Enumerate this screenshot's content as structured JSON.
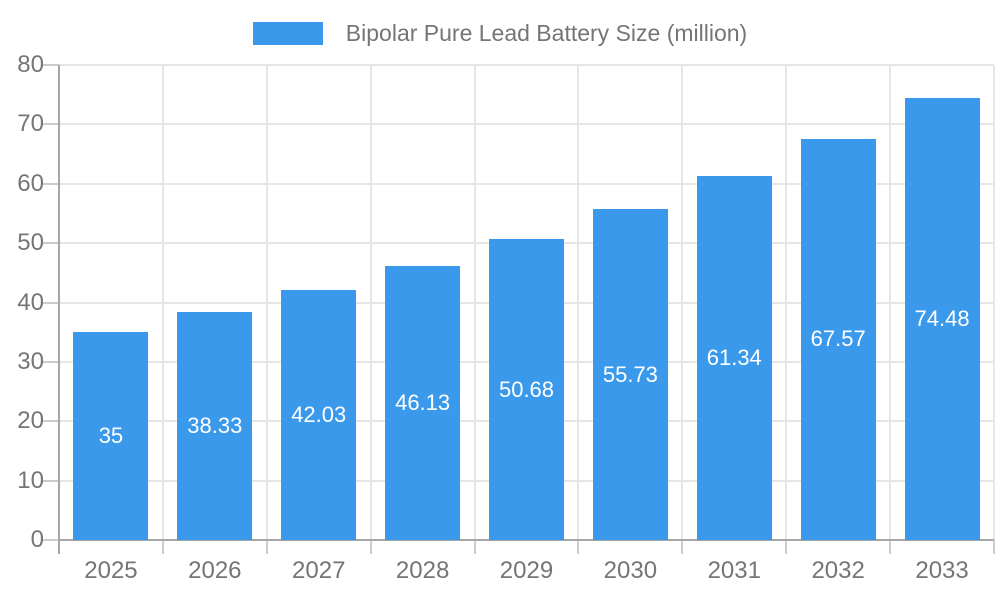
{
  "legend": {
    "label": "Bipolar Pure Lead Battery Size (million)"
  },
  "chart_data": {
    "type": "bar",
    "title": "",
    "xlabel": "",
    "ylabel": "",
    "categories": [
      "2025",
      "2026",
      "2027",
      "2028",
      "2029",
      "2030",
      "2031",
      "2032",
      "2033"
    ],
    "series": [
      {
        "name": "Bipolar Pure Lead Battery Size (million)",
        "values": [
          35,
          38.33,
          42.03,
          46.13,
          50.68,
          55.73,
          61.34,
          67.57,
          74.48
        ]
      }
    ],
    "bar_labels": [
      "35",
      "38.33",
      "42.03",
      "46.13",
      "50.68",
      "55.73",
      "61.34",
      "67.57",
      "74.48"
    ],
    "ylim": [
      0,
      80
    ],
    "yticks": [
      0,
      10,
      20,
      30,
      40,
      50,
      60,
      70,
      80
    ],
    "grid": true,
    "legend_position": "top",
    "colors": {
      "bar": "#3b99ec",
      "bar_label": "#ffffff",
      "axis_label": "#757575",
      "axis_line": "#a6a6a6",
      "tick": "#cccccc",
      "gridline": "#e6e6e6",
      "background": "#ffffff"
    }
  }
}
